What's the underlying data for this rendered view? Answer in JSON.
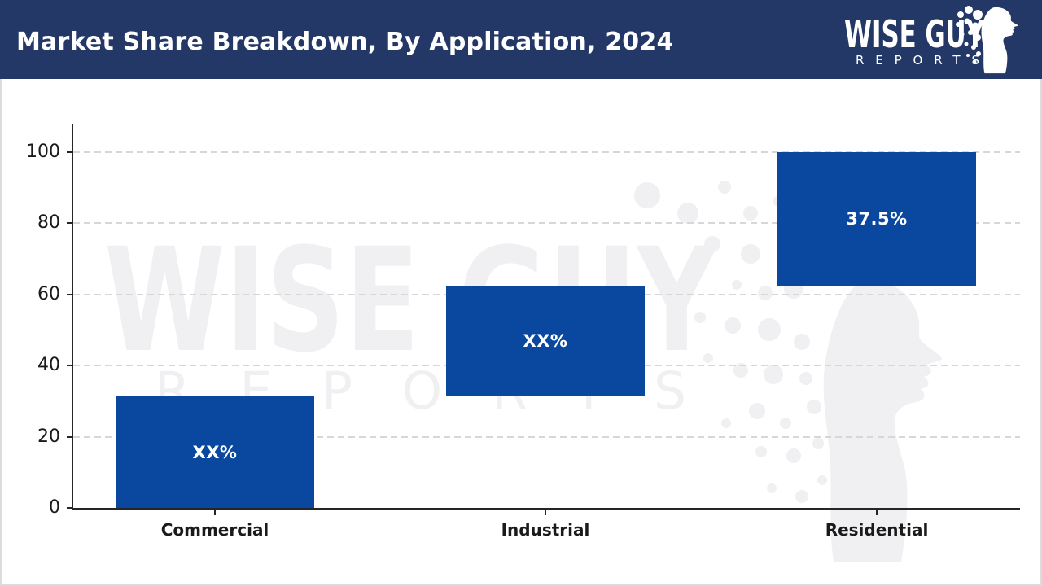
{
  "header": {
    "title": "Market Share Breakdown, By Application, 2024",
    "logo": {
      "line1": "WISE GUY",
      "line2": "REPORTS"
    }
  },
  "watermark": {
    "line1": "WISE GUY",
    "line2": "REPORTS"
  },
  "chart_data": {
    "type": "bar",
    "subtype": "floating-segment-breakdown",
    "title": "Market Share Breakdown, By Application, 2024",
    "categories": [
      "Commercial",
      "Industrial",
      "Residential"
    ],
    "segments": [
      {
        "category": "Commercial",
        "start": 0,
        "end": 31.25,
        "label": "XX%"
      },
      {
        "category": "Industrial",
        "start": 31.25,
        "end": 62.5,
        "label": "XX%"
      },
      {
        "category": "Residential",
        "start": 62.5,
        "end": 100,
        "label": "37.5%"
      }
    ],
    "ylim": [
      0,
      100
    ],
    "yticks": [
      0,
      20,
      40,
      60,
      80,
      100
    ],
    "grid": "horizontal-dashed",
    "legend": "none",
    "bar_color": "#0a479e",
    "bar_label_color": "#ffffff"
  },
  "colors": {
    "header_bg": "#233866",
    "axis": "#262626",
    "gridline": "#d7d7d7",
    "watermark": "#f0f0f2",
    "panel_border": "#dcdcdc",
    "text": "#1a1a1a"
  }
}
